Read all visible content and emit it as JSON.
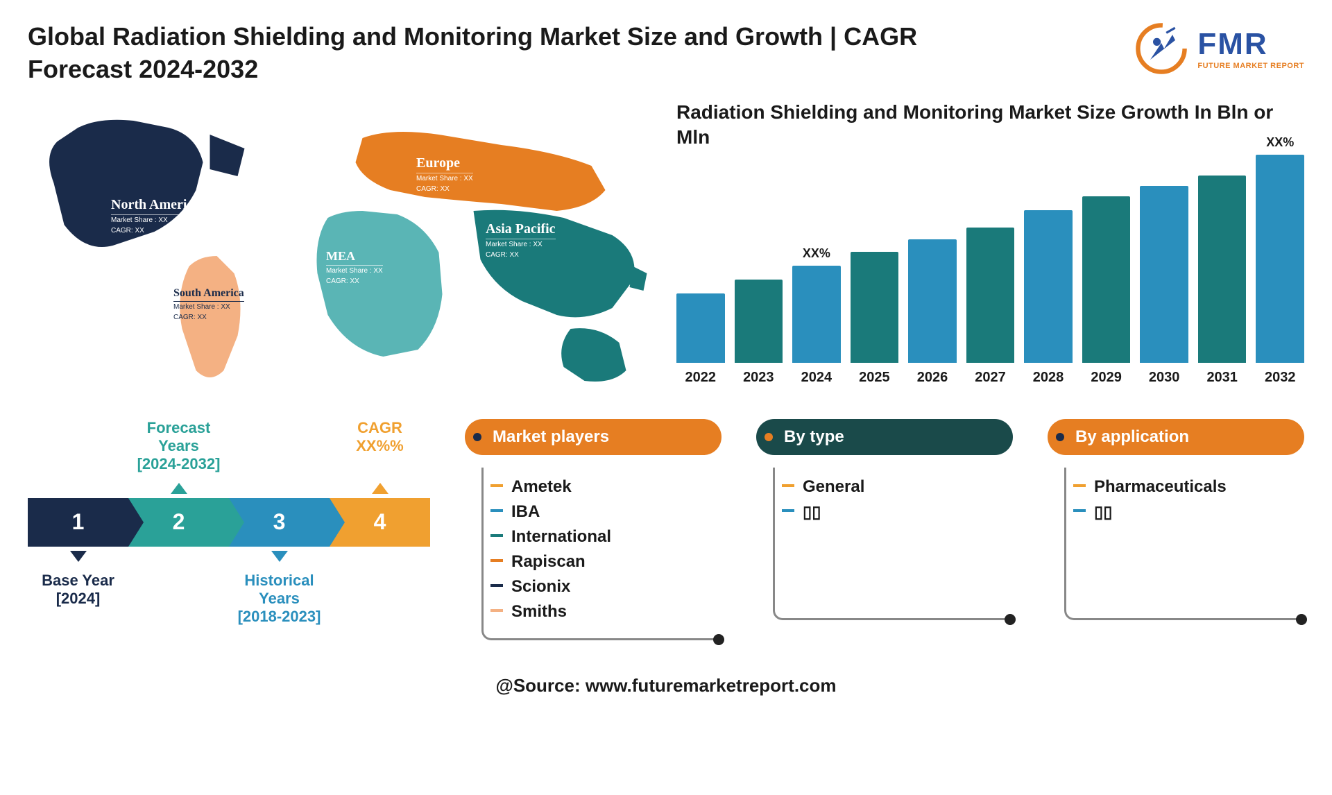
{
  "title": "Global Radiation Shielding and Monitoring Market Size and Growth | CAGR Forecast 2024-2032",
  "logo": {
    "text_big": "FMR",
    "text_small": "FUTURE MARKET REPORT",
    "icon_color_primary": "#e67e22",
    "icon_color_secondary": "#2a52a3"
  },
  "colors": {
    "title": "#1a1a1a",
    "bg": "#ffffff",
    "na": "#1a2b4a",
    "sa": "#f4b183",
    "eu": "#e67e22",
    "mea": "#5ab5b5",
    "ap": "#1a7a7a"
  },
  "map": {
    "regions": [
      {
        "key": "na",
        "name": "North America",
        "share": "XX",
        "cagr": "XX",
        "color": "#1a2b4a"
      },
      {
        "key": "sa",
        "name": "South America",
        "share": "XX",
        "cagr": "XX",
        "color": "#f4b183"
      },
      {
        "key": "eu",
        "name": "Europe",
        "share": "XX",
        "cagr": "XX",
        "color": "#e67e22"
      },
      {
        "key": "mea",
        "name": "MEA",
        "share": "XX",
        "cagr": "XX",
        "color": "#5ab5b5"
      },
      {
        "key": "ap",
        "name": "Asia Pacific",
        "share": "XX",
        "cagr": "XX",
        "color": "#1a7a7a"
      }
    ],
    "share_prefix": "Market Share : ",
    "cagr_prefix": "CAGR: "
  },
  "chart": {
    "title": "Radiation Shielding and Monitoring Market Size Growth In Bln or Mln",
    "type": "bar",
    "years": [
      "2022",
      "2023",
      "2024",
      "2025",
      "2026",
      "2027",
      "2028",
      "2029",
      "2030",
      "2031",
      "2032"
    ],
    "values": [
      100,
      120,
      140,
      160,
      178,
      195,
      220,
      240,
      255,
      270,
      300
    ],
    "colors": [
      "#2a8fbd",
      "#1a7a7a",
      "#2a8fbd",
      "#1a7a7a",
      "#2a8fbd",
      "#1a7a7a",
      "#2a8fbd",
      "#1a7a7a",
      "#2a8fbd",
      "#1a7a7a",
      "#2a8fbd"
    ],
    "pct_labels": {
      "2024": "XX%",
      "2032": "XX%"
    },
    "y_max": 300,
    "label_fontsize": 20,
    "title_fontsize": 28,
    "bar_gap": 14
  },
  "timeline": {
    "segments": [
      {
        "num": "1",
        "color": "#1a2b4a",
        "label_pos": "bottom",
        "label_title": "Base Year",
        "label_value": "[2024]",
        "label_color": "#1a2b4a"
      },
      {
        "num": "2",
        "color": "#2aa198",
        "label_pos": "top",
        "label_title": "Forecast Years",
        "label_value": "[2024-2032]",
        "label_color": "#2aa198"
      },
      {
        "num": "3",
        "color": "#2a8fbd",
        "label_pos": "bottom",
        "label_title": "Historical Years",
        "label_value": "[2018-2023]",
        "label_color": "#2a8fbd"
      },
      {
        "num": "4",
        "color": "#f0a030",
        "label_pos": "top",
        "label_title": "CAGR",
        "label_value": "XX%%",
        "label_color": "#f0a030"
      }
    ]
  },
  "pills": [
    {
      "title": "Market players",
      "bg": "#e67e22",
      "dot": "#1a2b4a",
      "items": [
        "Ametek",
        "IBA",
        "International",
        "Rapiscan",
        "Scionix",
        "Smiths"
      ],
      "bullet_colors": [
        "#f0a030",
        "#2a8fbd",
        "#1a7a7a",
        "#e67e22",
        "#1a2b4a",
        "#f4b183"
      ]
    },
    {
      "title": "By type",
      "bg": "#1a4a4a",
      "dot": "#e67e22",
      "items": [
        "General",
        "▯▯"
      ],
      "bullet_colors": [
        "#f0a030",
        "#2a8fbd"
      ]
    },
    {
      "title": "By application",
      "bg": "#e67e22",
      "dot": "#1a2b4a",
      "items": [
        "Pharmaceuticals",
        "▯▯"
      ],
      "bullet_colors": [
        "#f0a030",
        "#2a8fbd"
      ]
    }
  ],
  "source": "@Source: www.futuremarketreport.com"
}
